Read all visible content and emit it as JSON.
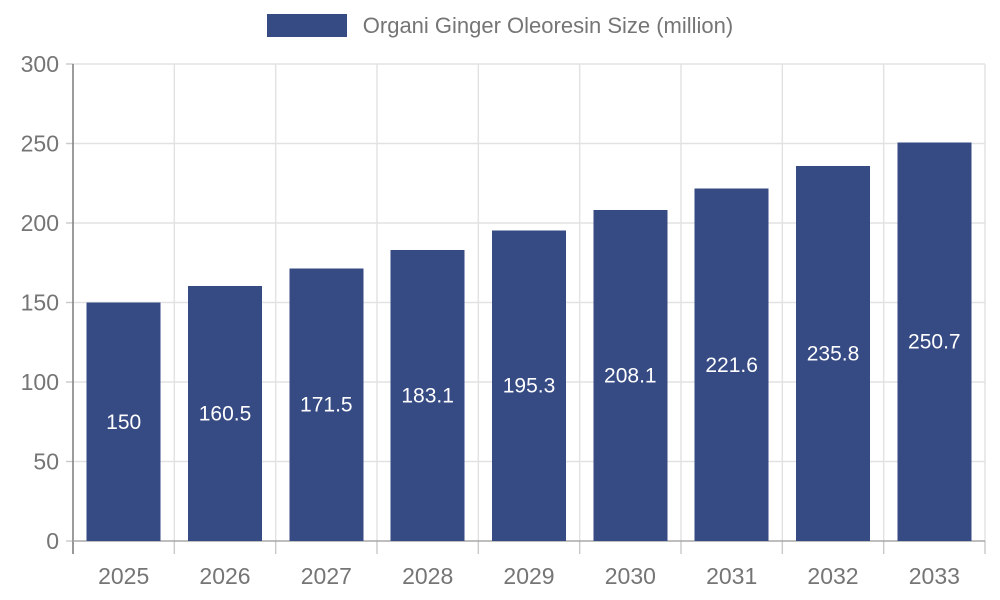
{
  "chart_data": {
    "type": "bar",
    "title": "",
    "series": [
      {
        "name": "Organi Ginger Oleoresin Size (million)",
        "values": [
          150,
          160.5,
          171.5,
          183.1,
          195.3,
          208.1,
          221.6,
          235.8,
          250.7
        ]
      }
    ],
    "categories": [
      "2025",
      "2026",
      "2027",
      "2028",
      "2029",
      "2030",
      "2031",
      "2032",
      "2033"
    ],
    "value_labels": [
      "150",
      "160.5",
      "171.5",
      "183.1",
      "195.3",
      "208.1",
      "221.6",
      "235.8",
      "250.7"
    ],
    "xlabel": "",
    "ylabel": "",
    "ylim": [
      0,
      300
    ],
    "yticks": [
      0,
      50,
      100,
      150,
      200,
      250,
      300
    ],
    "grid": true,
    "legend_position": "top-center",
    "colors": {
      "bar": "#364A84",
      "value_label": "#ffffff",
      "axis_text": "#757575",
      "gridline": "#e2e2e2",
      "y_axis_line": "#848484",
      "x_axis_line": "#a8a8a8",
      "tick": "#c9c9c9",
      "background": "#ffffff"
    }
  }
}
